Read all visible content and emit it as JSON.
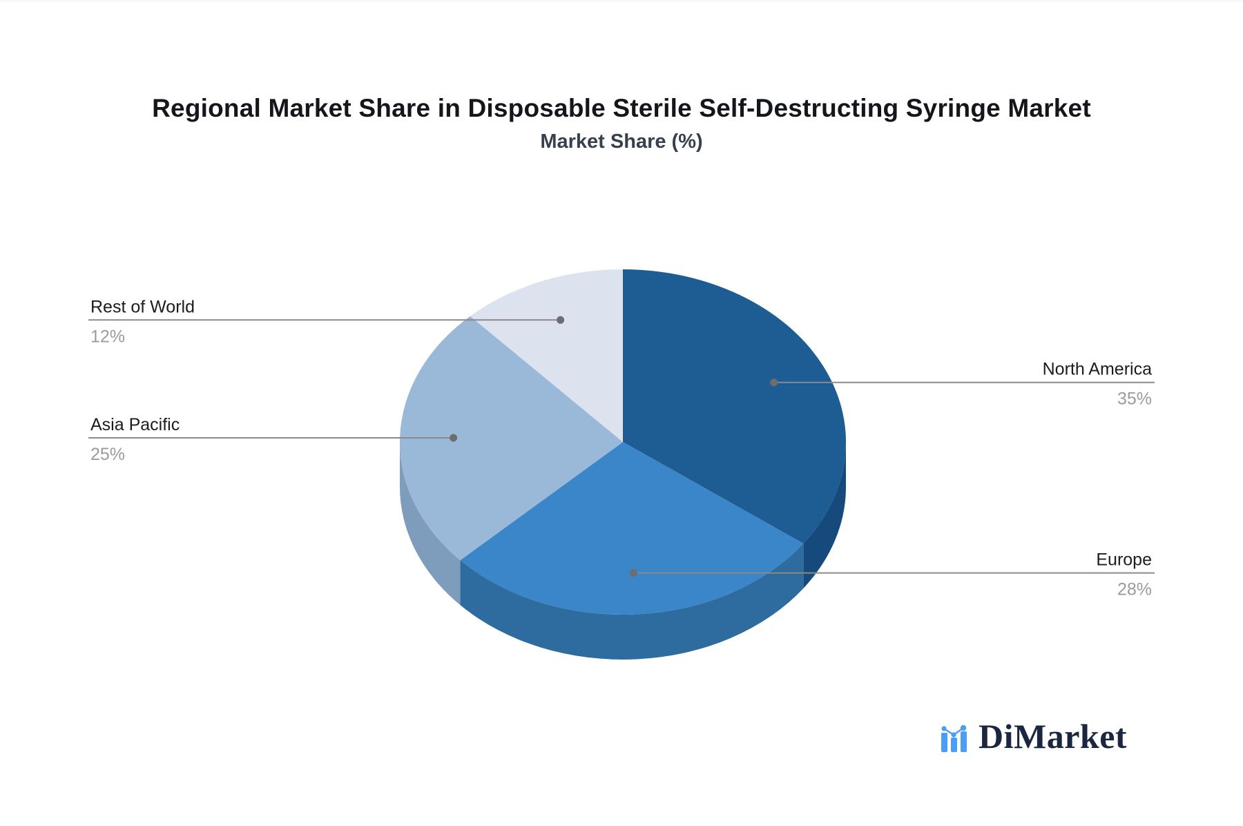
{
  "title": "Regional Market Share in Disposable Sterile Self-Destructing Syringe Market",
  "subtitle": "Market Share (%)",
  "logo": {
    "text": "DiMarket",
    "icon": "bar-line-chart-logo-icon",
    "accent_color": "#4b9ef5",
    "text_color": "#1b2740"
  },
  "colors": {
    "background": "#ffffff",
    "title_text": "#14161b",
    "subtitle_text": "#36404e",
    "label_name_text": "#1c1c1c",
    "label_value_text": "#9b9b9b",
    "leader_line": "#8a8a8a",
    "leader_dot": "#6d6d6d"
  },
  "chart_data": {
    "type": "pie",
    "title": "Regional Market Share in Disposable Sterile Self-Destructing Syringe Market",
    "subtitle": "Market Share (%)",
    "unit": "%",
    "effect": "3d",
    "start_angle_deg": 0,
    "direction": "clockwise",
    "legend_position": "none",
    "labels_layout": "outside-leader-lines",
    "slices": [
      {
        "label": "North America",
        "value": 35,
        "display": "35%",
        "color": "#1e5c94",
        "side_color": "#174a7c",
        "label_side": "right"
      },
      {
        "label": "Europe",
        "value": 28,
        "display": "28%",
        "color": "#3b86c8",
        "side_color": "#2e6b9e",
        "label_side": "right"
      },
      {
        "label": "Asia Pacific",
        "value": 25,
        "display": "25%",
        "color": "#9ab9d8",
        "side_color": "#7e9cbb",
        "label_side": "left"
      },
      {
        "label": "Rest of World",
        "value": 12,
        "display": "12%",
        "color": "#dde3ee",
        "side_color": "#b9c6d8",
        "label_side": "left"
      }
    ]
  }
}
